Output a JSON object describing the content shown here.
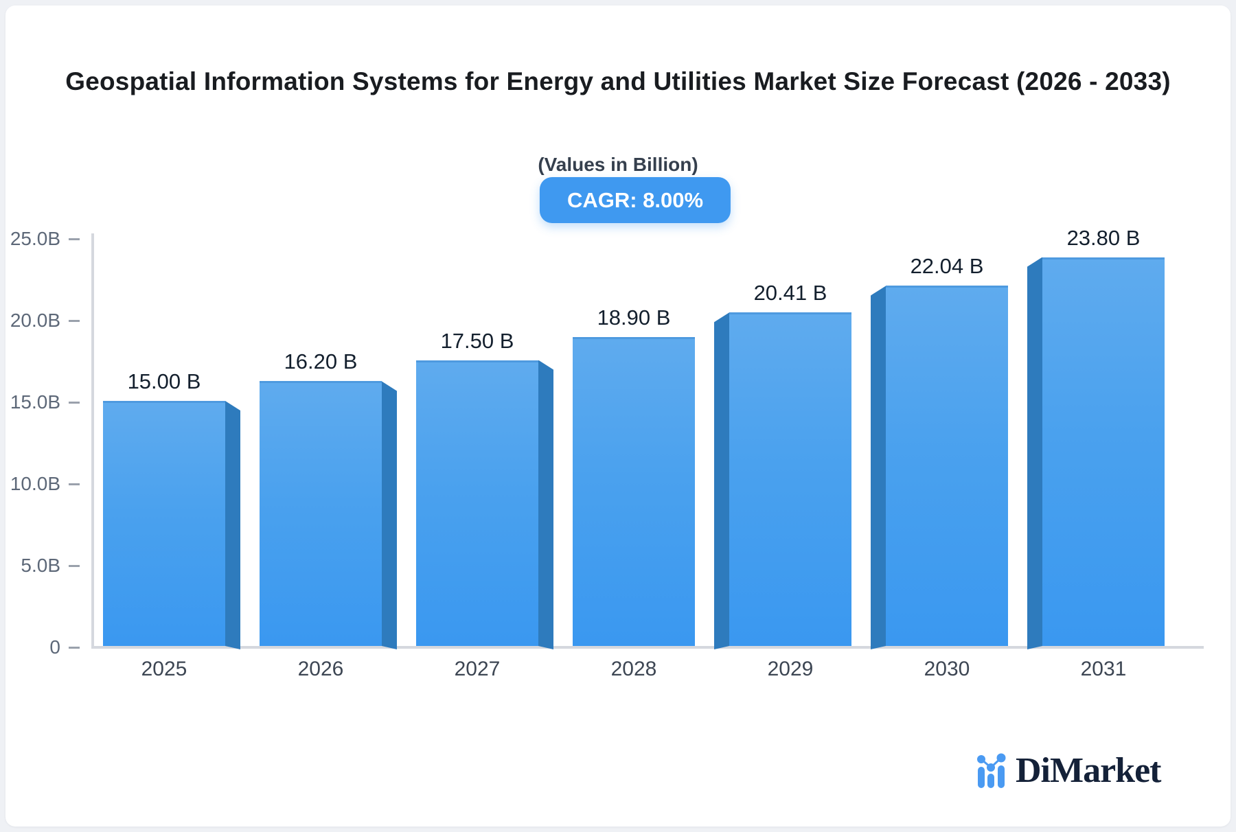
{
  "page": {
    "background": "#eff1f5",
    "card_background": "#ffffff",
    "accent_color": "#3f99f0"
  },
  "header": {
    "title": "Geospatial Information Systems for Energy and Utilities Market Size Forecast (2026 - 2033)",
    "subtitle": "(Values in Billion)",
    "cagr_label": "CAGR: 8.00%"
  },
  "chart_data": {
    "type": "bar",
    "title": "Geospatial Information Systems for Energy and Utilities Market Size Forecast (2026 - 2033)",
    "subtitle": "(Values in Billion)",
    "categories": [
      "2025",
      "2026",
      "2027",
      "2028",
      "2029",
      "2030",
      "2031"
    ],
    "values": [
      15.0,
      16.2,
      17.5,
      18.9,
      20.41,
      22.04,
      23.8
    ],
    "value_labels": [
      "15.00 B",
      "16.20 B",
      "17.50 B",
      "18.90 B",
      "20.41 B",
      "22.04 B",
      "23.80 B"
    ],
    "xlabel": "",
    "ylabel": "",
    "unit": "Billion",
    "ylim": [
      0,
      25
    ],
    "y_ticks": [
      {
        "value": 25,
        "label": "25.0B"
      },
      {
        "value": 20,
        "label": "20.0B"
      },
      {
        "value": 15,
        "label": "15.0B"
      },
      {
        "value": 10,
        "label": "10.0B"
      },
      {
        "value": 5,
        "label": "5.0B"
      },
      {
        "value": 0,
        "label": "0"
      }
    ],
    "grid": false,
    "legend": null,
    "bar_colors": {
      "face_top": "#5fabee",
      "face_bottom": "#3a98f0",
      "side": "#2e7bbd"
    }
  },
  "footer": {
    "brand": "DiMarket",
    "logo_icon": "bar-chart-trend-icon",
    "logo_color": "#4a9af2",
    "brand_color": "#142138"
  }
}
